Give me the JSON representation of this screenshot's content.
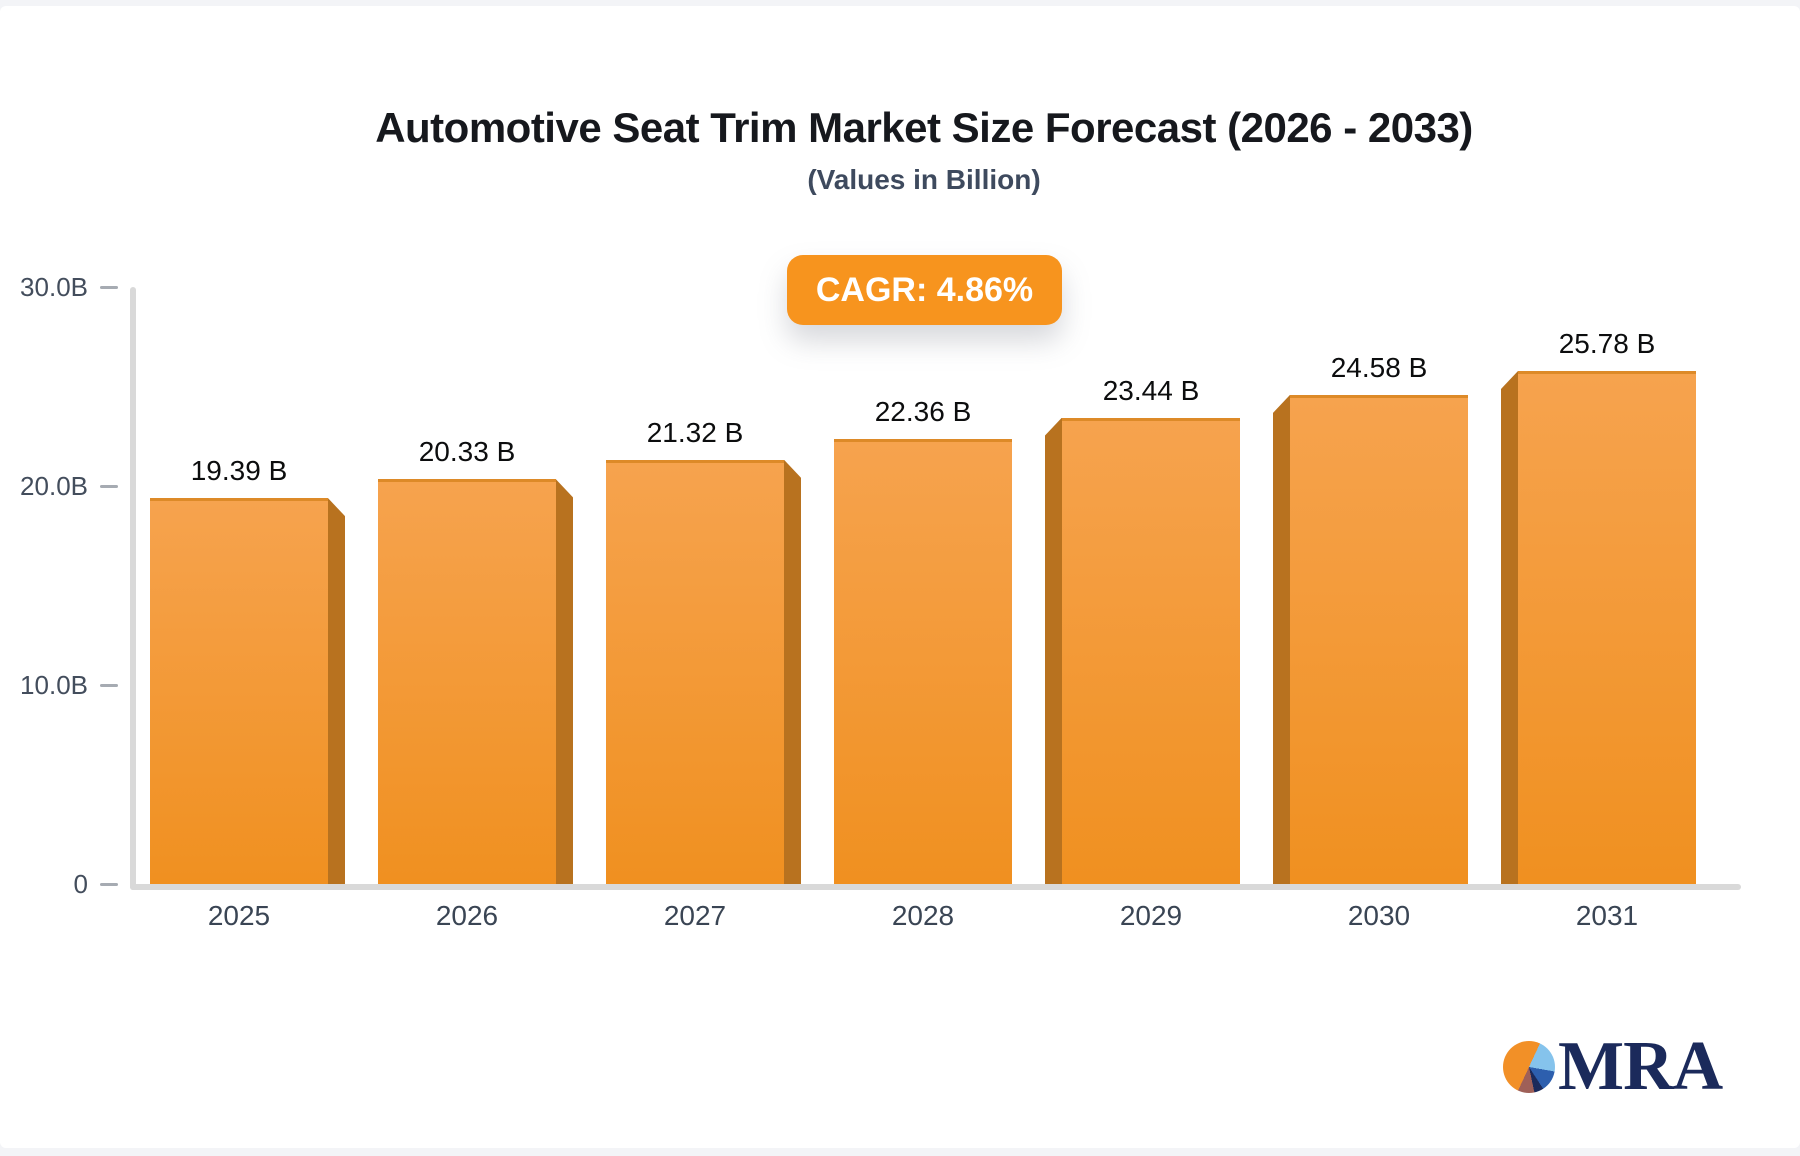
{
  "page": {
    "background": "#f3f4f7",
    "card_background": "#ffffff"
  },
  "chart_data": {
    "type": "bar",
    "title": "Automotive Seat Trim Market Size Forecast (2026 - 2033)",
    "subtitle": "(Values in Billion)",
    "cagr_badge": "CAGR: 4.86%",
    "categories": [
      "2025",
      "2026",
      "2027",
      "2028",
      "2029",
      "2030",
      "2031"
    ],
    "values": [
      19.39,
      20.33,
      21.32,
      22.36,
      23.44,
      24.58,
      25.78
    ],
    "value_labels": [
      "19.39 B",
      "20.33 B",
      "21.32 B",
      "22.36 B",
      "23.44 B",
      "24.58 B",
      "25.78 B"
    ],
    "ylim": [
      0,
      30
    ],
    "y_ticks": [
      {
        "label": "30.0B",
        "value": 30
      },
      {
        "label": "20.0B",
        "value": 20
      },
      {
        "label": "10.0B",
        "value": 10
      },
      {
        "label": "0",
        "value": 0
      }
    ],
    "grid": false,
    "legend_position": "none",
    "colors": {
      "bar_top": "#f6a34e",
      "bar_bottom": "#f09020",
      "bar_edge": "#dd8a28",
      "bar_side": "#b8721f",
      "axis_line": "#d9d9d9",
      "tick_dash": "#a6abb2",
      "tick_text": "#434d5c",
      "value_text": "#0c0d0e",
      "category_text": "#3a4554",
      "badge_bg": "#f7941e",
      "badge_text": "#ffffff"
    }
  },
  "branding": {
    "logo_text": "MRA",
    "logo_colors": {
      "navy": "#1b2a5b",
      "orange": "#f29027",
      "light_blue": "#85c3ec",
      "blue": "#2d5fae",
      "maroon": "#9f6058"
    }
  }
}
